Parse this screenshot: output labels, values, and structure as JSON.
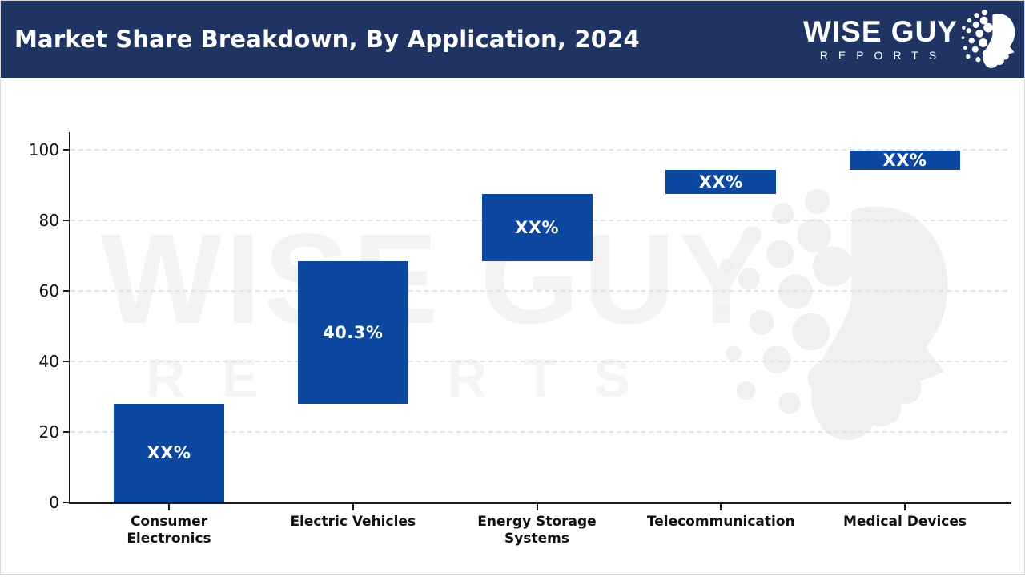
{
  "header": {
    "title": "Market Share Breakdown, By Application, 2024",
    "logo": {
      "line1": "WISE GUY",
      "line2": "REPORTS"
    }
  },
  "watermark": {
    "line1": "WISE GUY",
    "line2": "REPORTS"
  },
  "colors": {
    "header_bg": "#1f3463",
    "bar": "#0d48a0",
    "axis": "#1a1a1a",
    "gridline": "#e3e3e3",
    "bar_label": "#ffffff"
  },
  "chart_data": {
    "type": "bar",
    "variant": "waterfall-stacked-percent",
    "title": "Market Share Breakdown, By Application, 2024",
    "categories": [
      "Consumer Electronics",
      "Electric Vehicles",
      "Energy Storage Systems",
      "Telecommunication",
      "Medical Devices"
    ],
    "category_lines": [
      [
        "Consumer",
        "Electronics"
      ],
      [
        "Electric Vehicles"
      ],
      [
        "Energy Storage",
        "Systems"
      ],
      [
        "Telecommunication"
      ],
      [
        "Medical Devices"
      ]
    ],
    "segments": [
      {
        "category": "Consumer Electronics",
        "start": 0,
        "end": 28.0,
        "value": 28.0,
        "label": "XX%"
      },
      {
        "category": "Electric Vehicles",
        "start": 28.0,
        "end": 68.3,
        "value": 40.3,
        "label": "40.3%"
      },
      {
        "category": "Energy Storage Systems",
        "start": 68.3,
        "end": 87.5,
        "value": 19.2,
        "label": "XX%"
      },
      {
        "category": "Telecommunication",
        "start": 87.5,
        "end": 94.3,
        "value": 6.8,
        "label": "XX%"
      },
      {
        "category": "Medical Devices",
        "start": 94.3,
        "end": 99.8,
        "value": 5.5,
        "label": "XX%"
      }
    ],
    "yticks": [
      0,
      20,
      40,
      60,
      80,
      100
    ],
    "ylim": [
      0,
      105
    ],
    "xlabel": "",
    "ylabel": "",
    "grid": "horizontal-dashed",
    "legend": "none"
  }
}
